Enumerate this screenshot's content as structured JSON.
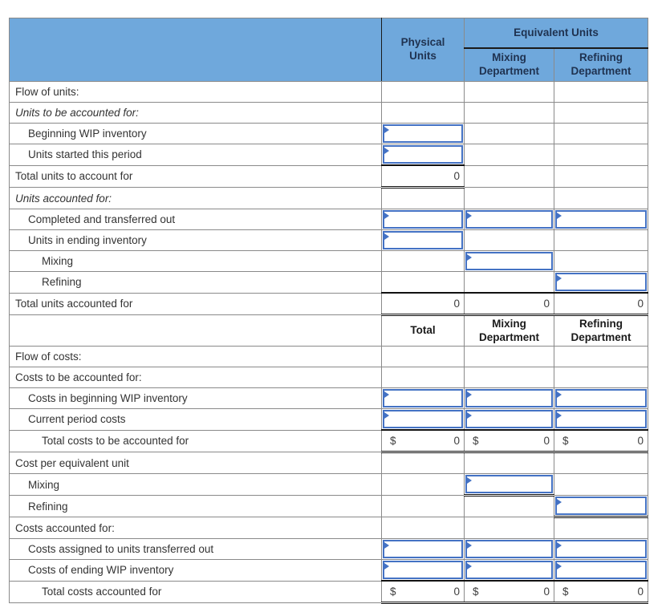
{
  "colors": {
    "header_bg": "#6FA8DC",
    "header_text": "#1F3250",
    "input_border": "#4472C4",
    "grid": "#8a8a8a",
    "strong_border": "#111111"
  },
  "table": {
    "header": {
      "label": "",
      "physical_units": "Physical\nUnits",
      "equivalent_units": "Equivalent Units",
      "mixing_department": "Mixing\nDepartment",
      "refining_department": "Refining\nDepartment"
    },
    "cost_header": {
      "total": "Total",
      "mixing_department": "Mixing\nDepartment",
      "refining_department": "Refining\nDepartment"
    },
    "unit_rows": [
      {
        "label": "Flow of units:",
        "indent": 0,
        "italic": false,
        "cells": [
          {
            "type": "empty"
          },
          {
            "type": "empty"
          },
          {
            "type": "empty"
          }
        ]
      },
      {
        "label": "Units to be accounted for:",
        "indent": 0,
        "italic": true,
        "cells": [
          {
            "type": "empty"
          },
          {
            "type": "empty"
          },
          {
            "type": "empty"
          }
        ]
      },
      {
        "label": "Beginning WIP inventory",
        "indent": 1,
        "italic": false,
        "cells": [
          {
            "type": "input"
          },
          {
            "type": "empty"
          },
          {
            "type": "empty"
          }
        ]
      },
      {
        "label": "Units started this period",
        "indent": 1,
        "italic": false,
        "cells": [
          {
            "type": "input"
          },
          {
            "type": "empty"
          },
          {
            "type": "empty"
          }
        ]
      },
      {
        "label": "Total units to account for",
        "indent": 0,
        "italic": false,
        "cells": [
          {
            "type": "num",
            "value": "0",
            "cls": "tt bd"
          },
          {
            "type": "empty"
          },
          {
            "type": "empty"
          }
        ]
      },
      {
        "label": "Units accounted for:",
        "indent": 0,
        "italic": true,
        "cells": [
          {
            "type": "empty"
          },
          {
            "type": "empty"
          },
          {
            "type": "empty"
          }
        ]
      },
      {
        "label": "Completed and transferred out",
        "indent": 1,
        "italic": false,
        "cells": [
          {
            "type": "input"
          },
          {
            "type": "input"
          },
          {
            "type": "input"
          }
        ]
      },
      {
        "label": "Units in ending inventory",
        "indent": 1,
        "italic": false,
        "cells": [
          {
            "type": "input"
          },
          {
            "type": "empty"
          },
          {
            "type": "empty"
          }
        ]
      },
      {
        "label": "Mixing",
        "indent": 2,
        "italic": false,
        "cells": [
          {
            "type": "empty"
          },
          {
            "type": "input"
          },
          {
            "type": "empty"
          }
        ]
      },
      {
        "label": "Refining",
        "indent": 2,
        "italic": false,
        "cells": [
          {
            "type": "empty"
          },
          {
            "type": "empty"
          },
          {
            "type": "input"
          }
        ]
      },
      {
        "label": "Total units accounted for",
        "indent": 0,
        "italic": false,
        "cells": [
          {
            "type": "num",
            "value": "0",
            "cls": "tt bd"
          },
          {
            "type": "num",
            "value": "0",
            "cls": "tt bd"
          },
          {
            "type": "num",
            "value": "0",
            "cls": "tt bd"
          }
        ]
      }
    ],
    "cost_rows": [
      {
        "label": "Flow of costs:",
        "indent": 0,
        "italic": false,
        "cells": [
          {
            "type": "empty"
          },
          {
            "type": "empty"
          },
          {
            "type": "empty"
          }
        ]
      },
      {
        "label": "Costs to be accounted for:",
        "indent": 0,
        "italic": false,
        "cells": [
          {
            "type": "empty"
          },
          {
            "type": "empty"
          },
          {
            "type": "empty"
          }
        ]
      },
      {
        "label": "Costs in beginning WIP inventory",
        "indent": 1,
        "italic": false,
        "cells": [
          {
            "type": "input"
          },
          {
            "type": "input"
          },
          {
            "type": "input"
          }
        ]
      },
      {
        "label": "Current period costs",
        "indent": 1,
        "italic": false,
        "cells": [
          {
            "type": "input"
          },
          {
            "type": "input"
          },
          {
            "type": "input"
          }
        ]
      },
      {
        "label": "Total costs to be accounted for",
        "indent": 2,
        "italic": false,
        "cells": [
          {
            "type": "money",
            "currency": "$",
            "value": "0",
            "cls": "tt bd"
          },
          {
            "type": "money",
            "currency": "$",
            "value": "0",
            "cls": "tt bd"
          },
          {
            "type": "money",
            "currency": "$",
            "value": "0",
            "cls": "tt bd"
          }
        ]
      },
      {
        "label": "Cost per equivalent unit",
        "indent": 0,
        "italic": false,
        "cells": [
          {
            "type": "empty"
          },
          {
            "type": "empty"
          },
          {
            "type": "empty"
          }
        ]
      },
      {
        "label": "Mixing",
        "indent": 1,
        "italic": false,
        "cells": [
          {
            "type": "empty"
          },
          {
            "type": "input",
            "cls": "bd"
          },
          {
            "type": "empty"
          }
        ]
      },
      {
        "label": "Refining",
        "indent": 1,
        "italic": false,
        "cells": [
          {
            "type": "empty"
          },
          {
            "type": "empty"
          },
          {
            "type": "input",
            "cls": "bd"
          }
        ]
      },
      {
        "label": "Costs accounted for:",
        "indent": 0,
        "italic": false,
        "cells": [
          {
            "type": "empty"
          },
          {
            "type": "empty"
          },
          {
            "type": "empty"
          }
        ]
      },
      {
        "label": "Costs assigned to units transferred out",
        "indent": 1,
        "italic": false,
        "cells": [
          {
            "type": "input"
          },
          {
            "type": "input"
          },
          {
            "type": "input"
          }
        ]
      },
      {
        "label": "Costs of ending WIP inventory",
        "indent": 1,
        "italic": false,
        "cells": [
          {
            "type": "input"
          },
          {
            "type": "input"
          },
          {
            "type": "input"
          }
        ]
      },
      {
        "label": "Total costs accounted for",
        "indent": 2,
        "italic": false,
        "cells": [
          {
            "type": "money",
            "currency": "$",
            "value": "0",
            "cls": "tt bd"
          },
          {
            "type": "money",
            "currency": "$",
            "value": "0",
            "cls": "tt bd"
          },
          {
            "type": "money",
            "currency": "$",
            "value": "0",
            "cls": "tt bd"
          }
        ]
      }
    ]
  }
}
